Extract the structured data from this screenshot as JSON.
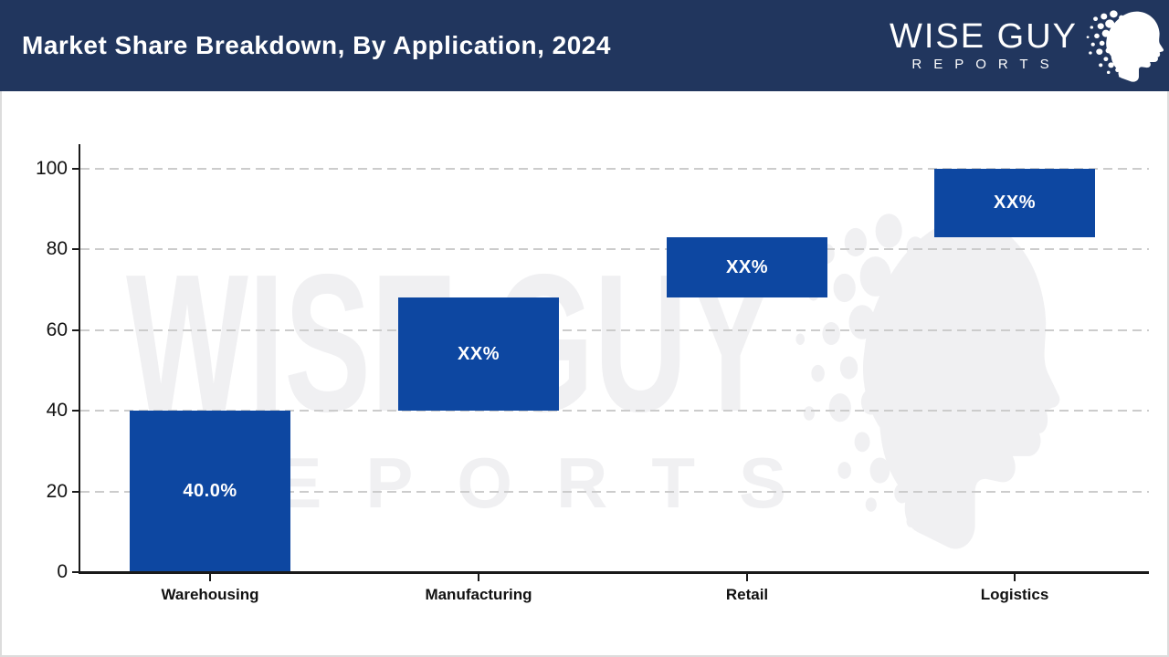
{
  "header": {
    "title": "Market Share Breakdown, By Application, 2024",
    "bg_color": "#21365e",
    "logo": {
      "line1": "WISE GUY",
      "line2": "REPORTS"
    }
  },
  "watermark": {
    "line1": "WISE GUY",
    "line2": "REPORTS",
    "color": "#f0f0f2"
  },
  "chart_data": {
    "type": "bar",
    "subtype": "waterfall",
    "title": "Market Share Breakdown, By Application, 2024",
    "categories": [
      "Warehousing",
      "Manufacturing",
      "Retail",
      "Logistics"
    ],
    "bars": [
      {
        "category": "Warehousing",
        "start": 0,
        "end": 40,
        "label": "40.0%"
      },
      {
        "category": "Manufacturing",
        "start": 40,
        "end": 68,
        "label": "XX%"
      },
      {
        "category": "Retail",
        "start": 68,
        "end": 83,
        "label": "XX%"
      },
      {
        "category": "Logistics",
        "start": 83,
        "end": 100,
        "label": "XX%"
      }
    ],
    "segment_values_pct": [
      40,
      28,
      15,
      17
    ],
    "yticks": [
      0,
      20,
      40,
      60,
      80,
      100
    ],
    "ylim": [
      0,
      105
    ],
    "xlabel": "",
    "ylabel": "",
    "grid": "horizontal-dashed",
    "legend": "none",
    "colors": {
      "bar": "#0d47a1",
      "bar_label": "#ffffff",
      "grid": "#cccccc",
      "axis": "#1a1a1a",
      "tick_label": "#111111"
    }
  }
}
